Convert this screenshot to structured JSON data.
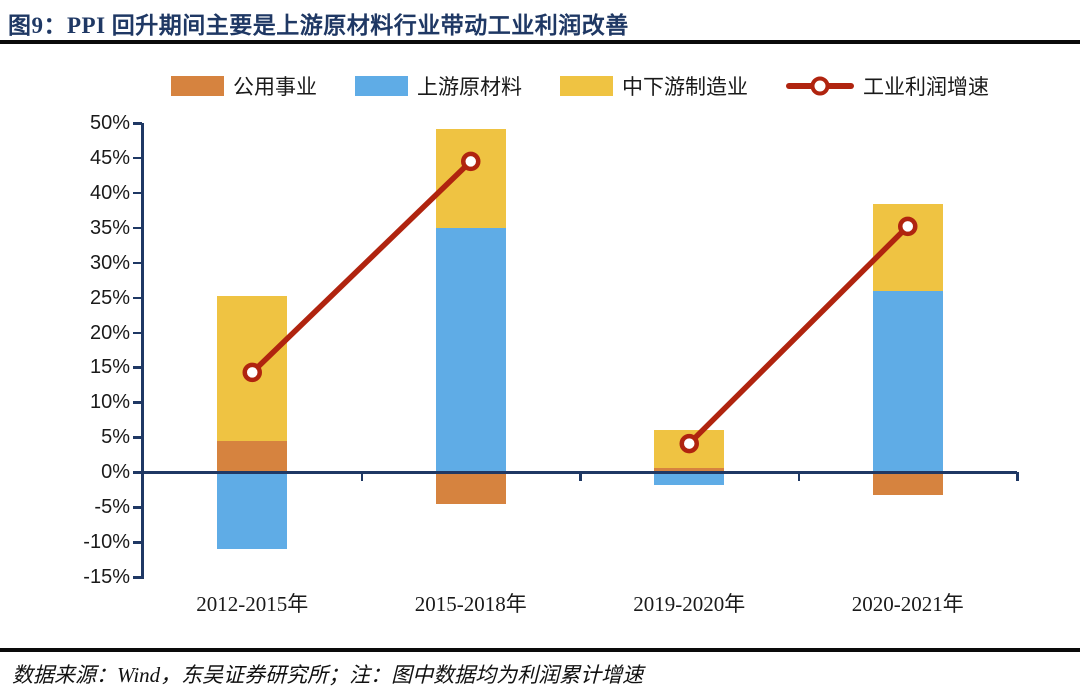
{
  "header": {
    "title": "图9：PPI 回升期间主要是上游原材料行业带动工业利润改善"
  },
  "footer": {
    "text": "数据来源：Wind，东吴证券研究所；注：图中数据均为利润累计增速"
  },
  "colors": {
    "title_navy": "#1F3864",
    "axis_navy": "#1F3864",
    "rule_black": "#0a0a0a",
    "bar_orange": "#D6833F",
    "bar_blue": "#5FACE6",
    "bar_yellow": "#EFC342",
    "line_red": "#B0240F"
  },
  "chart_data": {
    "type": "bar",
    "subtype": "stacked-bars-with-line",
    "categories": [
      "2012-2015年",
      "2015-2018年",
      "2019-2020年",
      "2020-2021年"
    ],
    "bar_series": [
      {
        "name": "公用事业",
        "color": "#D6833F",
        "values": [
          4.5,
          -4.6,
          0.6,
          -3.2
        ]
      },
      {
        "name": "上游原材料",
        "color": "#5FACE6",
        "values": [
          -11.0,
          35.0,
          -1.8,
          26.0
        ]
      },
      {
        "name": "中下游制造业",
        "color": "#EFC342",
        "values": [
          20.7,
          14.1,
          5.4,
          12.4
        ]
      }
    ],
    "stack_totals_positive": [
      25.2,
      49.1,
      6.0,
      38.4
    ],
    "line_series": {
      "name": "工业利润增速",
      "color": "#B0240F",
      "values": [
        14.3,
        44.5,
        4.1,
        35.2
      ],
      "segments": [
        [
          0,
          1
        ],
        [
          2,
          3
        ]
      ]
    },
    "y_axis": {
      "min": -15,
      "max": 50,
      "step": 5,
      "unit": "%",
      "ticks": [
        "50%",
        "45%",
        "40%",
        "35%",
        "30%",
        "25%",
        "20%",
        "15%",
        "10%",
        "5%",
        "0%",
        "-5%",
        "-10%",
        "-15%"
      ]
    },
    "legend_position": "top",
    "grid": false
  }
}
